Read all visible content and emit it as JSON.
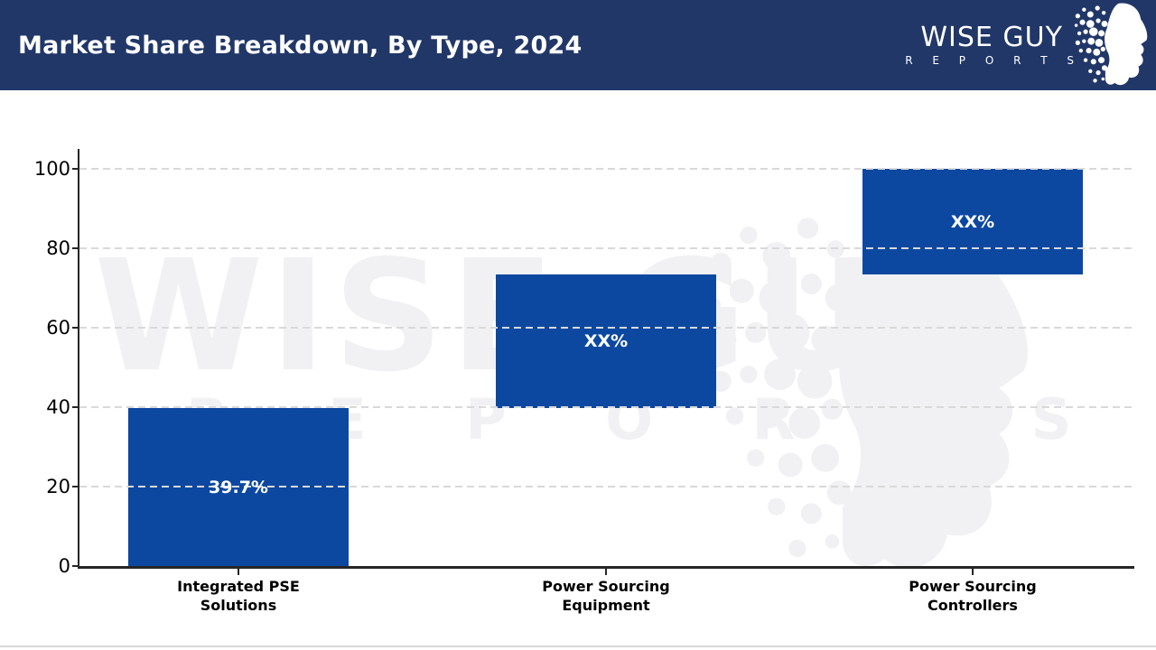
{
  "header": {
    "title": "Market Share Breakdown, By Type, 2024",
    "logo": {
      "line1": "WISE GUY",
      "line2": "R E P O R T S"
    }
  },
  "watermark": {
    "line1": "WISE GUY",
    "line2": "R E P O R T S"
  },
  "colors": {
    "header_bg": "#213768",
    "bar": "#0c48a0",
    "axis": "#262626",
    "grid": "#d9d9d9",
    "watermark": "#f1f1f3",
    "bar_label": "#ffffff"
  },
  "chart_data": {
    "type": "bar",
    "subtype": "floating-segment-breakdown",
    "title": "Market Share Breakdown, By Type, 2024",
    "categories": [
      {
        "label": "Integrated PSE Solutions",
        "lines": [
          "Integrated PSE",
          "Solutions"
        ]
      },
      {
        "label": "Power Sourcing Equipment",
        "lines": [
          "Power Sourcing",
          "Equipment"
        ]
      },
      {
        "label": "Power Sourcing Controllers",
        "lines": [
          "Power Sourcing",
          "Controllers"
        ]
      }
    ],
    "segments": [
      {
        "category": "Integrated PSE Solutions",
        "start": 0,
        "end": 39.7,
        "label": "39.7%"
      },
      {
        "category": "Power Sourcing Equipment",
        "start": 39.7,
        "end": 73.4,
        "label": "XX%"
      },
      {
        "category": "Power Sourcing Controllers",
        "start": 73.4,
        "end": 100,
        "label": "XX%"
      }
    ],
    "ylim": [
      0,
      100
    ],
    "yticks": [
      0,
      20,
      40,
      60,
      80,
      100
    ],
    "xlabel": "",
    "ylabel": "",
    "grid": {
      "horizontal": true,
      "style": "dashed"
    },
    "legend": null
  }
}
